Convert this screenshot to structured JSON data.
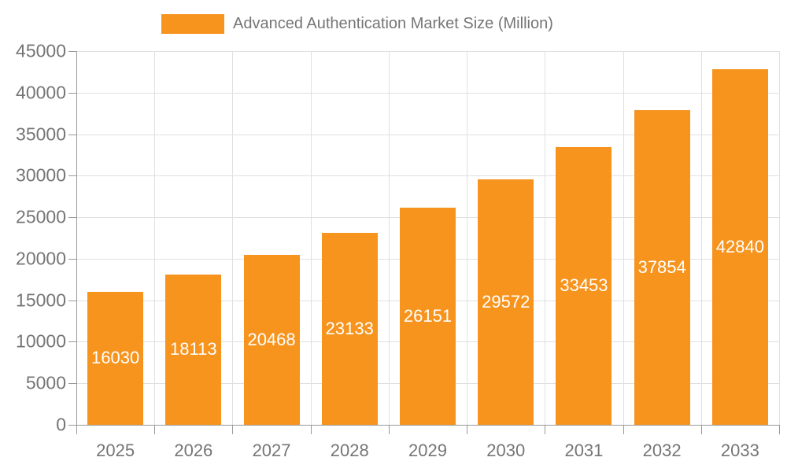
{
  "chart_data": {
    "type": "bar",
    "title": "Advanced Authentication Market Size (Million)",
    "categories": [
      "2025",
      "2026",
      "2027",
      "2028",
      "2029",
      "2030",
      "2031",
      "2032",
      "2033"
    ],
    "series": [
      {
        "name": "Advanced Authentication Market Size (Million)",
        "values": [
          16030,
          18113,
          20468,
          23133,
          26151,
          29572,
          33453,
          37854,
          42840
        ]
      }
    ],
    "xlabel": "",
    "ylabel": "",
    "ylim": [
      0,
      45000
    ],
    "yticks": [
      0,
      5000,
      10000,
      15000,
      20000,
      25000,
      30000,
      35000,
      40000,
      45000
    ],
    "grid": "both",
    "legend_position": "top",
    "value_labels": "inside-center"
  },
  "legend": {
    "label": "Advanced Authentication Market Size (Million)"
  },
  "colors": {
    "bar": "#F7941E",
    "value_label": "#FFFFFF",
    "axis_text": "#757575",
    "legend_text": "#757575",
    "grid_line": "#E0E0E0",
    "axis_line": "#999999",
    "background": "#FFFFFF"
  }
}
